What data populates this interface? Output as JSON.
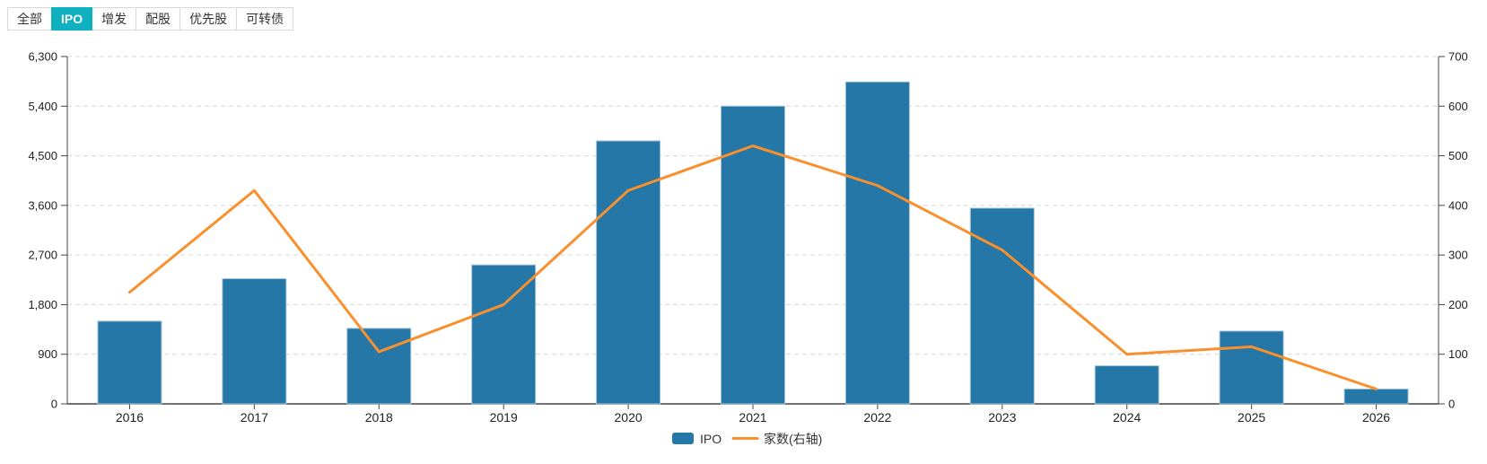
{
  "tabs": {
    "items": [
      {
        "id": "tab-all",
        "label": "全部",
        "active": false
      },
      {
        "id": "tab-ipo",
        "label": "IPO",
        "active": true
      },
      {
        "id": "tab-additional-issue",
        "label": "增发",
        "active": false
      },
      {
        "id": "tab-rights-issue",
        "label": "配股",
        "active": false
      },
      {
        "id": "tab-preferred-stock",
        "label": "优先股",
        "active": false
      },
      {
        "id": "tab-convertible-bond",
        "label": "可转债",
        "active": false
      }
    ]
  },
  "colors": {
    "tab_active_bg": "#0fb0c0",
    "bar": "#2477a6",
    "bar_border": "#a3c4d8",
    "line": "#f8902d",
    "grid": "#d6d6d6",
    "axis": "#444444",
    "text": "#222222"
  },
  "chart_data": {
    "type": "bar",
    "subtype": "bar+line dual axis",
    "categories": [
      "2016",
      "2017",
      "2018",
      "2019",
      "2020",
      "2021",
      "2022",
      "2023",
      "2024",
      "2025",
      "2026"
    ],
    "series": [
      {
        "name": "IPO",
        "type": "bar",
        "axis": "left",
        "values": [
          1500,
          2270,
          1370,
          2520,
          4770,
          5400,
          5840,
          3550,
          690,
          1320,
          270
        ]
      },
      {
        "name": "家数(右轴)",
        "type": "line",
        "axis": "right",
        "values": [
          225,
          430,
          105,
          200,
          430,
          520,
          440,
          310,
          100,
          115,
          30
        ]
      }
    ],
    "left_axis": {
      "min": 0,
      "max": 6300,
      "step": 900,
      "tick_labels": [
        "0",
        "900",
        "1,800",
        "2,700",
        "3,600",
        "4,500",
        "5,400",
        "6,300"
      ]
    },
    "right_axis": {
      "min": 0,
      "max": 700,
      "step": 100,
      "tick_labels": [
        "0",
        "100",
        "200",
        "300",
        "400",
        "500",
        "600",
        "700"
      ]
    },
    "legend": [
      {
        "label": "IPO",
        "marker": "bar-swatch"
      },
      {
        "label": "家数(右轴)",
        "marker": "line-swatch"
      }
    ],
    "grid": "horizontal dashed",
    "legend_position": "bottom-center",
    "title": "",
    "xlabel": "",
    "ylabel": ""
  }
}
